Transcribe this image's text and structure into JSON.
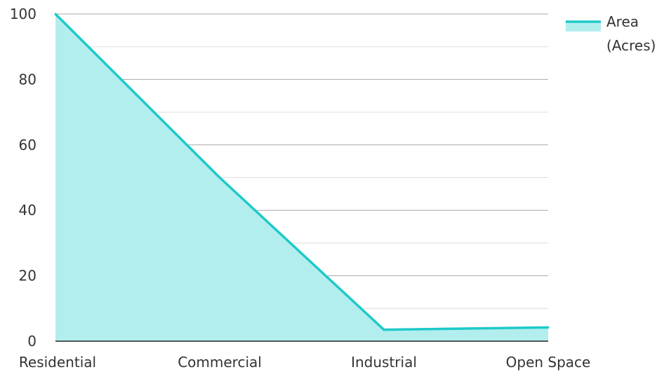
{
  "chart_data": {
    "type": "area",
    "categories": [
      "Residential",
      "Commercial",
      "Industrial",
      "Open Space"
    ],
    "series": [
      {
        "name": "Area (Acres)",
        "values": [
          100,
          50,
          3.5,
          4.2
        ]
      }
    ],
    "ylim": [
      0,
      100
    ],
    "yticks": [
      0,
      20,
      40,
      60,
      80,
      100
    ],
    "grid": true,
    "legend_position": "top-right",
    "legend_lines": [
      "Area",
      "(Acres)"
    ]
  },
  "colors": {
    "line": "#1ec9c9",
    "fill": "#b3eeee",
    "grid_major": "#a8a8a8",
    "grid_minor": "#dedede",
    "axis": "#222222"
  }
}
